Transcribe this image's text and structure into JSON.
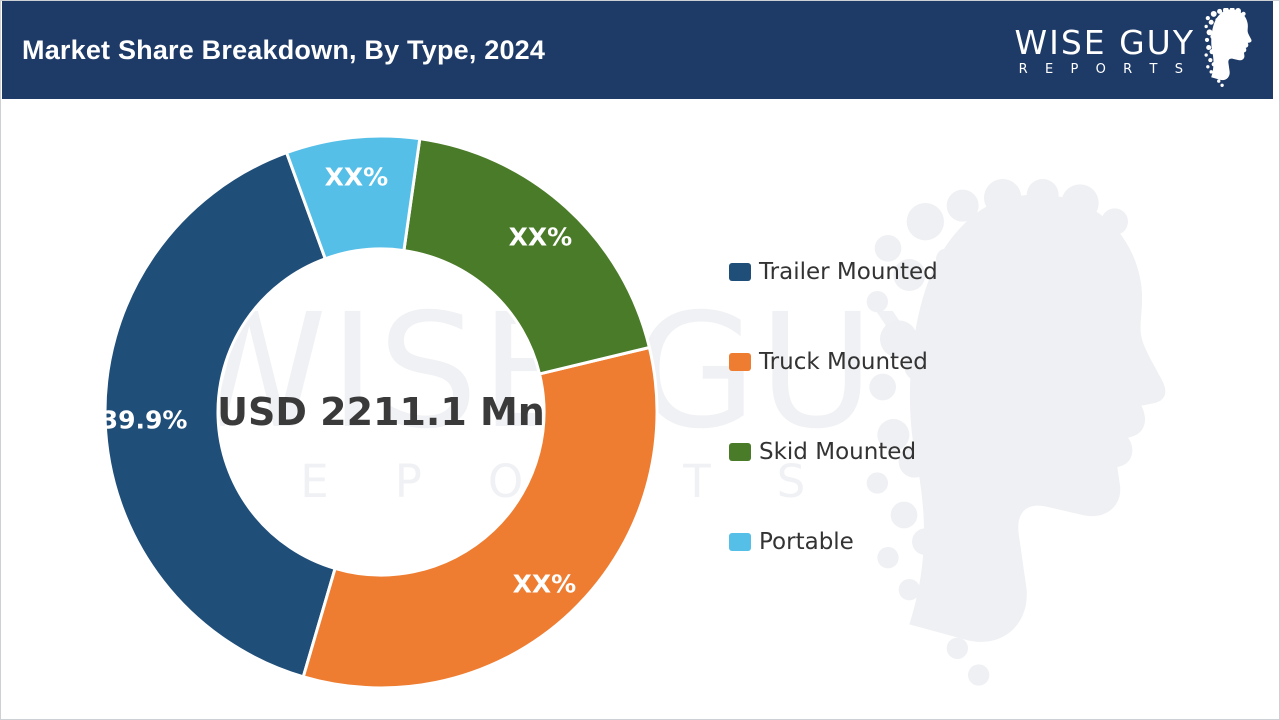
{
  "header": {
    "title": "Market Share Breakdown, By Type, 2024",
    "logo_line1": "WISE GUY",
    "logo_line2": "REPORTS"
  },
  "watermark": {
    "line1": "WISE GUY",
    "line2": "REPORTS"
  },
  "chart_data": {
    "type": "donut",
    "title": "Market Share Breakdown, By Type, 2024",
    "center_label": "USD 2211.1 Mn",
    "start_angle_clockwise_from_top_deg": 340,
    "legend_position": "right",
    "slices": [
      {
        "label": "Trailer Mounted",
        "display": "39.9%",
        "value": 39.9,
        "color": "#1F4E79"
      },
      {
        "label": "Truck Mounted",
        "display": "XX%",
        "value": 33.3,
        "color": "#EE7D31"
      },
      {
        "label": "Skid Mounted",
        "display": "XX%",
        "value": 19.0,
        "color": "#4A7B28"
      },
      {
        "label": "Portable",
        "display": "XX%",
        "value": 7.8,
        "color": "#55BFE8"
      }
    ]
  }
}
